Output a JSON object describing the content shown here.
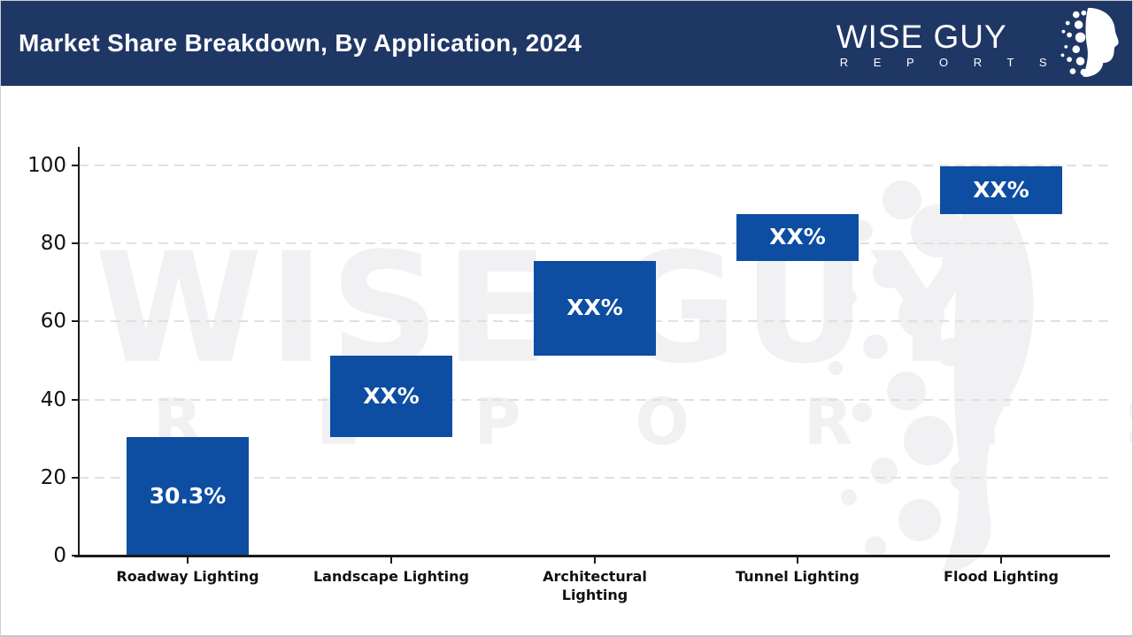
{
  "header": {
    "background_color": "#1f3765",
    "title": "Market Share Breakdown, By Application, 2024",
    "logo": {
      "name": "Wise Guy Reports",
      "line1": "WISE GUY",
      "line2": "R E P O R T S"
    }
  },
  "watermark": {
    "line1": "WISE GUY",
    "line2": "R E P O R T S"
  },
  "chart_data": {
    "type": "bar",
    "subtype": "waterfall-floating-bars",
    "title": "Market Share Breakdown, By Application, 2024",
    "categories": [
      "Roadway Lighting",
      "Landscape Lighting",
      "Architectural Lighting",
      "Tunnel Lighting",
      "Flood Lighting"
    ],
    "segments": [
      {
        "category": "Roadway Lighting",
        "start": 0,
        "end": 30.3,
        "value_label": "30.3%"
      },
      {
        "category": "Landscape Lighting",
        "start": 30.3,
        "end": 51.3,
        "value_label": "XX%"
      },
      {
        "category": "Architectural Lighting",
        "start": 51.3,
        "end": 75.6,
        "value_label": "XX%"
      },
      {
        "category": "Tunnel Lighting",
        "start": 75.6,
        "end": 87.5,
        "value_label": "XX%"
      },
      {
        "category": "Flood Lighting",
        "start": 87.5,
        "end": 99.8,
        "value_label": "XX%"
      }
    ],
    "xlabel": "",
    "ylabel": "",
    "ylim": [
      0,
      100
    ],
    "yticks": [
      0,
      20,
      40,
      60,
      80,
      100
    ],
    "grid": "horizontal-dashed",
    "legend": "none",
    "bar_color": "#0d4da2",
    "bar_label_color": "#ffffff",
    "axis_color": "#1a1a1a",
    "gridline_color": "#e0e0e0"
  }
}
